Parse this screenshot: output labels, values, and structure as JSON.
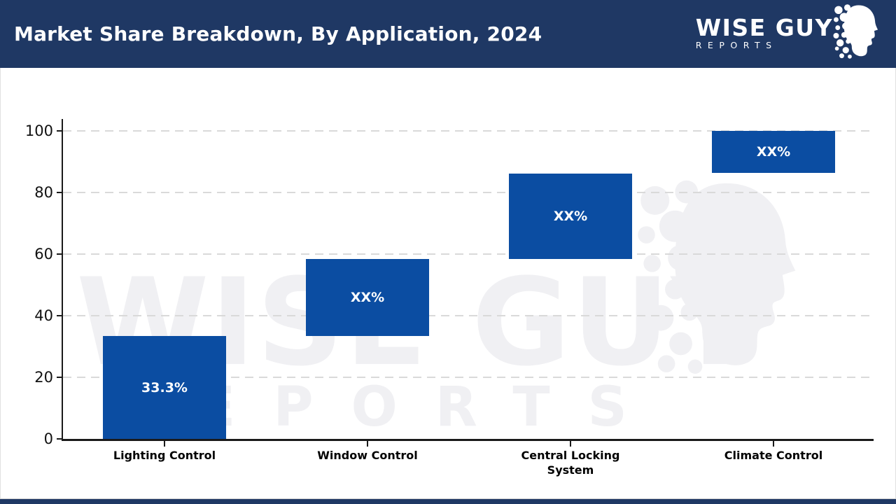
{
  "header": {
    "title": "Market Share Breakdown, By Application, 2024",
    "logo": {
      "line1": "WISE GUY",
      "line2": "REPORTS"
    }
  },
  "watermark": {
    "line1": "WISE GUY",
    "line2": "REPORTS"
  },
  "chart_data": {
    "type": "bar",
    "subtype": "floating-segment-bar",
    "title": "Market Share Breakdown, By Application, 2024",
    "categories": [
      "Lighting Control",
      "Window Control",
      "Central Locking System",
      "Climate Control"
    ],
    "bars": [
      {
        "category": "Lighting Control",
        "label": "33.3%",
        "start": 0,
        "end": 33.3
      },
      {
        "category": "Window Control",
        "label": "XX%",
        "start": 33.3,
        "end": 58.3
      },
      {
        "category": "Central Locking System",
        "label": "XX%",
        "start": 58.3,
        "end": 86.2
      },
      {
        "category": "Climate Control",
        "label": "XX%",
        "start": 86.4,
        "end": 100
      }
    ],
    "xlabel": "",
    "ylabel": "",
    "ylim": [
      0,
      100
    ],
    "yticks": [
      0,
      20,
      40,
      60,
      80,
      100
    ],
    "grid": "horizontal-dashed",
    "legend": "none"
  },
  "colors": {
    "header_bg": "#1f3864",
    "bar": "#0b4da2",
    "grid": "#d9d9d9",
    "axis": "#1a1a1a",
    "watermark": "#f0f0f3",
    "footer_bg": "#1f3864"
  }
}
